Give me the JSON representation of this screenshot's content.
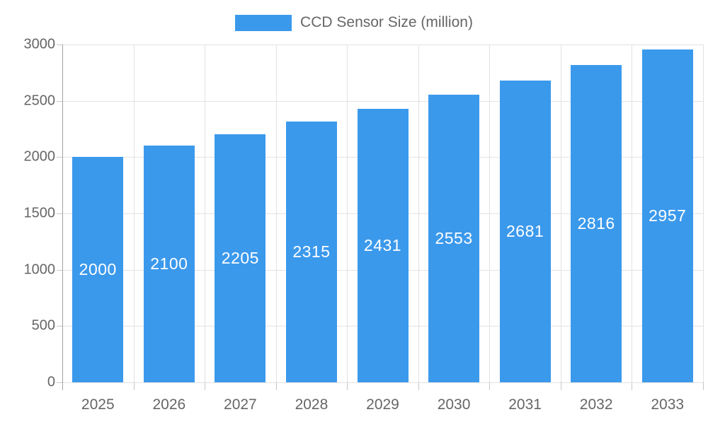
{
  "legend": {
    "label": "CCD Sensor Size (million)"
  },
  "colors": {
    "bar": "#3b99ec",
    "axis_text": "#666666",
    "grid": "#e2e2e2",
    "axis_line": "#a3a3a3",
    "tick": "#c7c7c7",
    "bar_label": "#ffffff",
    "background": "#ffffff"
  },
  "chart_data": {
    "type": "bar",
    "title": "",
    "xlabel": "",
    "ylabel": "",
    "categories": [
      "2025",
      "2026",
      "2027",
      "2028",
      "2029",
      "2030",
      "2031",
      "2032",
      "2033"
    ],
    "values": [
      2000,
      2100,
      2205,
      2315,
      2431,
      2553,
      2681,
      2816,
      2957
    ],
    "series_name": "CCD Sensor Size (million)",
    "ylim": [
      0,
      3000
    ],
    "yticks": [
      0,
      500,
      1000,
      1500,
      2000,
      2500,
      3000
    ],
    "grid": true,
    "legend_position": "top",
    "bar_value_labels": true
  }
}
